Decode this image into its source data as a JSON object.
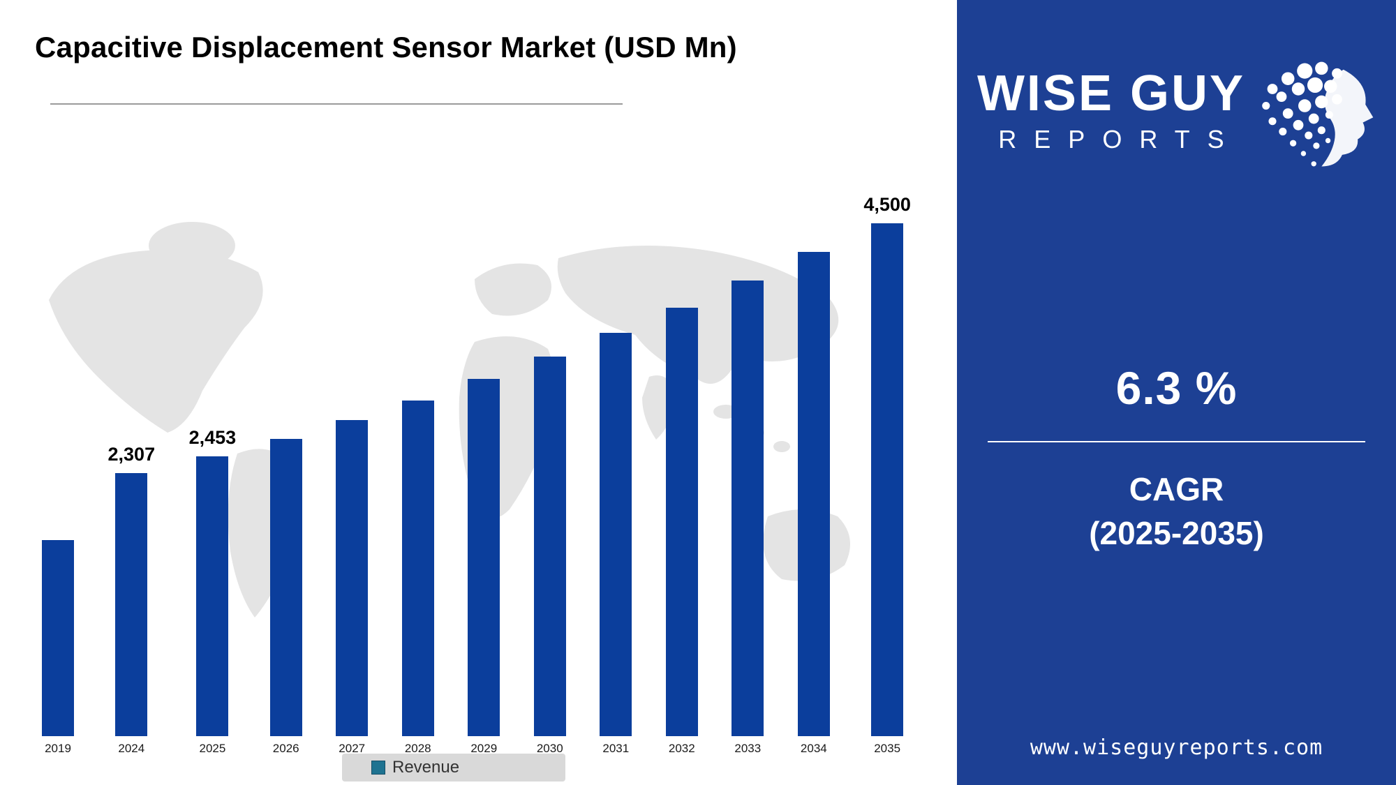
{
  "title": "Capacitive Displacement Sensor Market (USD Mn)",
  "chart_data": {
    "type": "bar",
    "categories": [
      "2019",
      "2024",
      "2025",
      "2026",
      "2027",
      "2028",
      "2029",
      "2030",
      "2031",
      "2032",
      "2033",
      "2034",
      "2035"
    ],
    "values": [
      1720,
      2307,
      2453,
      2608,
      2772,
      2947,
      3132,
      3330,
      3539,
      3762,
      4000,
      4251,
      4500
    ],
    "display_labels": [
      "",
      "2,307",
      "2,453",
      "",
      "",
      "",
      "",
      "",
      "",
      "",
      "",
      "",
      "4,500"
    ],
    "title": "Capacitive Displacement Sensor Market (USD Mn)",
    "xlabel": "",
    "ylabel": "",
    "ylim": [
      0,
      4500
    ],
    "grid": false,
    "legend": [
      "Revenue"
    ],
    "legend_position": "bottom",
    "bar_color": "#0b3e9c"
  },
  "legend": {
    "revenue_label": "Revenue",
    "swatch_color": "#1f7391"
  },
  "panel": {
    "bg_color": "#1d4094",
    "logo": {
      "line1": "WISE GUY",
      "line2": "REPORTS"
    },
    "cagr_value": "6.3 %",
    "cagr_label": "CAGR",
    "cagr_period": "(2025-2035)",
    "website": "www.wiseguyreports.com"
  }
}
